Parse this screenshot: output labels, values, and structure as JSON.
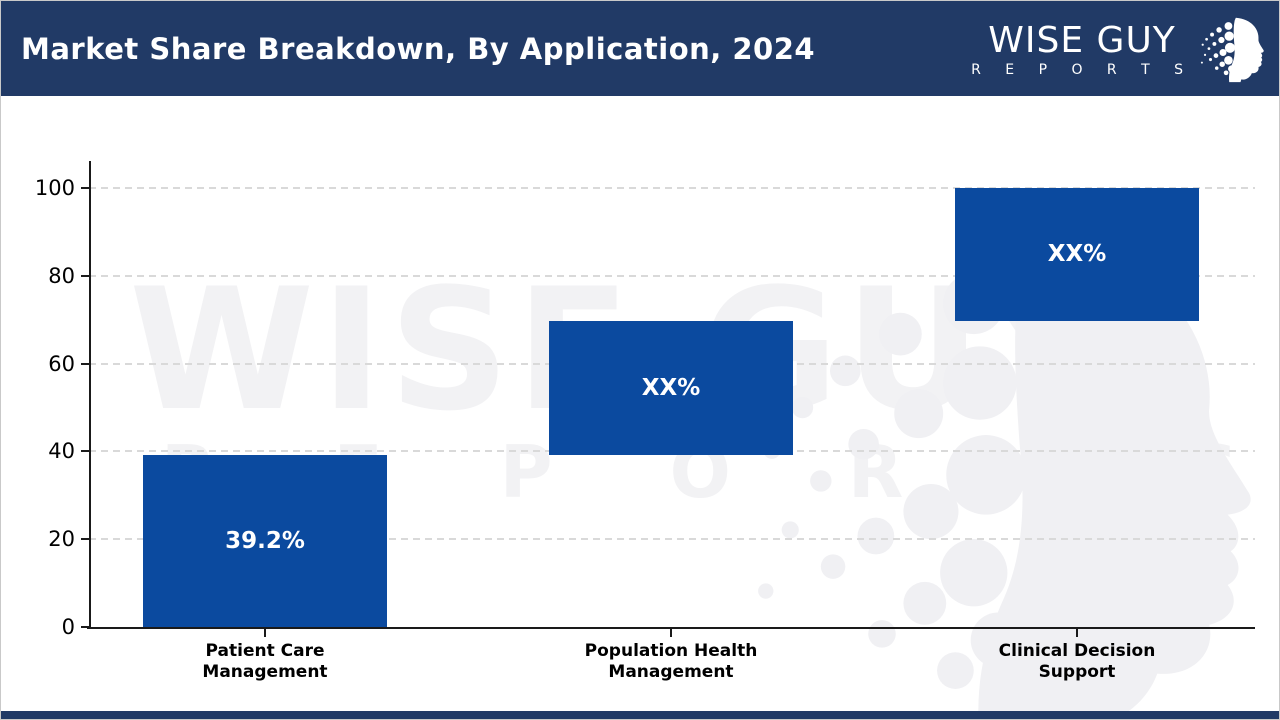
{
  "header": {
    "title": "Market Share Breakdown, By Application, 2024",
    "logo": {
      "line1": "WISE GUY",
      "line2": "R E P O R T S"
    }
  },
  "watermark": {
    "line1": "WISE GUY",
    "line2": "R E P O R T S"
  },
  "chart_data": {
    "type": "bar",
    "variant": "waterfall",
    "title": "Market Share Breakdown, By Application, 2024",
    "categories": [
      "Patient Care Management",
      "Population Health Management",
      "Clinical Decision Support"
    ],
    "category_label_lines": [
      [
        "Patient Care",
        "Management"
      ],
      [
        "Population Health",
        "Management"
      ],
      [
        "Clinical Decision",
        "Support"
      ]
    ],
    "segments": [
      {
        "category": "Patient Care Management",
        "start": 0,
        "end": 39.2,
        "label": "39.2%"
      },
      {
        "category": "Population Health Management",
        "start": 39.2,
        "end": 69.8,
        "label": "XX%"
      },
      {
        "category": "Clinical Decision Support",
        "start": 69.8,
        "end": 100,
        "label": "XX%"
      }
    ],
    "xlabel": "",
    "ylabel": "",
    "yticks": [
      0,
      20,
      40,
      60,
      80,
      100
    ],
    "ylim": [
      0,
      106
    ],
    "grid": {
      "axis": "y",
      "style": "dashed",
      "color": "#d9d9d9"
    },
    "legend": "none",
    "bar_color": "#0b4a9f",
    "bar_label_color": "#ffffff"
  },
  "colors": {
    "header_bg": "#213a66",
    "footer_bg": "#213a66",
    "bar": "#0b4a9f",
    "watermark": "#f2f2f4",
    "grid": "#d9d9d9",
    "axis": "#1a1a1a"
  }
}
